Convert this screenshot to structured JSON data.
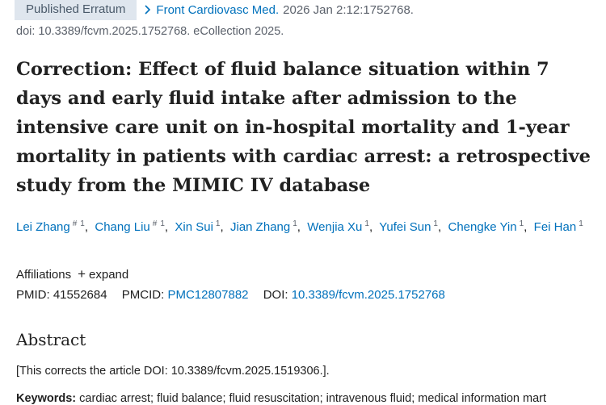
{
  "header": {
    "badge": "Published Erratum",
    "journal": "Front Cardiovasc Med.",
    "citation": "2026 Jan 2:12:1752768.",
    "doi_line": "doi: 10.3389/fcvm.2025.1752768. eCollection 2025."
  },
  "title": "Correction: Effect of fluid balance situation within 7 days and early fluid intake after admission to the intensive care unit on in-hospital mortality and 1-year mortality in patients with cardiac arrest: a retrospective study from the MIMIC IV database",
  "authors": [
    {
      "name": "Lei Zhang",
      "marks": [
        "#",
        "1"
      ]
    },
    {
      "name": "Chang Liu",
      "marks": [
        "#",
        "1"
      ]
    },
    {
      "name": "Xin Sui",
      "marks": [
        "1"
      ]
    },
    {
      "name": "Jian Zhang",
      "marks": [
        "1"
      ]
    },
    {
      "name": "Wenjia Xu",
      "marks": [
        "1"
      ]
    },
    {
      "name": "Yufei Sun",
      "marks": [
        "1"
      ]
    },
    {
      "name": "Chengke Yin",
      "marks": [
        "1"
      ]
    },
    {
      "name": "Fei Han",
      "marks": [
        "1"
      ]
    }
  ],
  "affiliations": {
    "label": "Affiliations",
    "toggle": "expand"
  },
  "identifiers": {
    "pmid_label": "PMID:",
    "pmid": "41552684",
    "pmcid_label": "PMCID:",
    "pmcid": "PMC12807882",
    "doi_label": "DOI:",
    "doi": "10.3389/fcvm.2025.1752768"
  },
  "abstract": {
    "heading": "Abstract",
    "text": "[This corrects the article DOI: 10.3389/fcvm.2025.1519306.].",
    "keywords_label": "Keywords:",
    "keywords": "cardiac arrest; fluid balance; fluid resuscitation; intravenous fluid; medical information mart"
  }
}
